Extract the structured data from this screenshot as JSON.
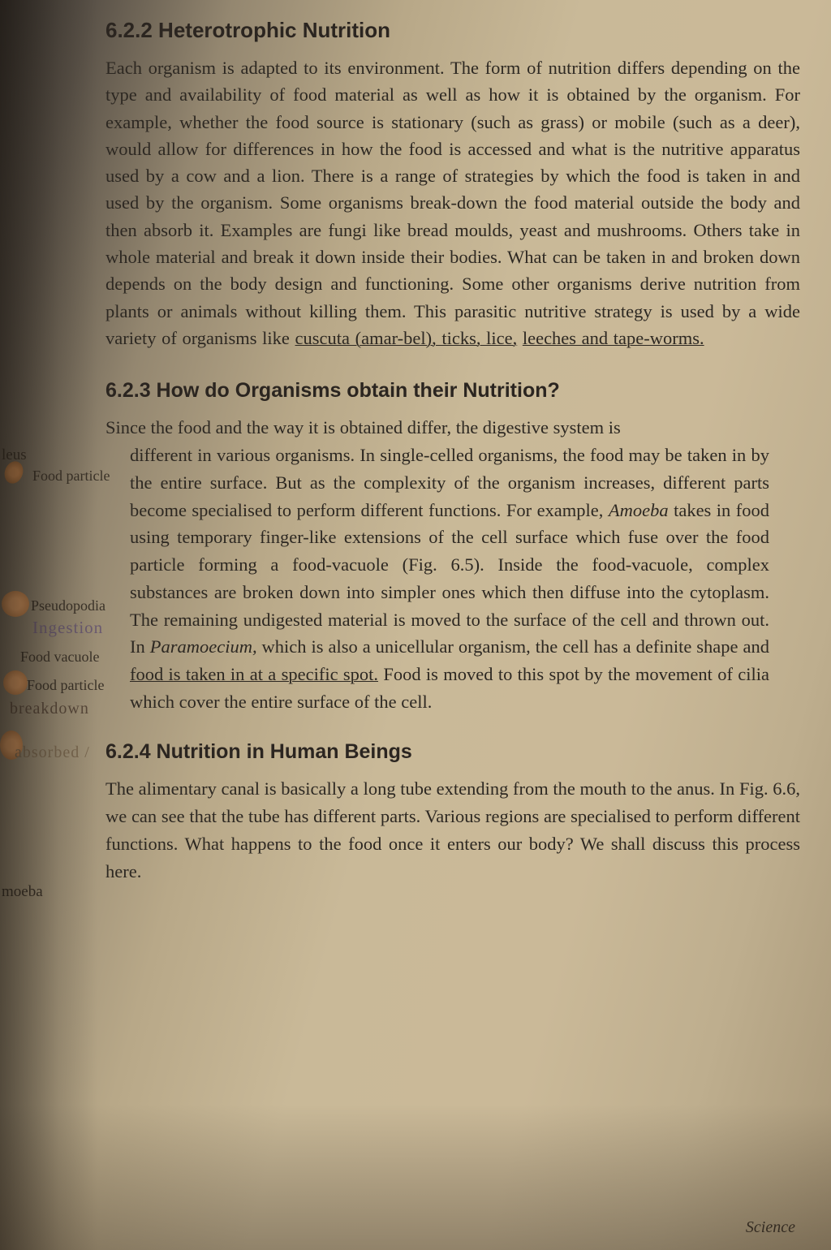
{
  "section622": {
    "heading": "6.2.2 Heterotrophic Nutrition",
    "para": "Each organism is adapted to its environment. The form of nutrition differs depending on the type and availability of food material as well as how it is obtained by the organism. For example, whether the food source is stationary (such as grass) or mobile (such as a deer), would allow for differences in how the food is accessed and what is the nutritive apparatus used by a cow and a lion. There is a range of strategies by which the food is taken in and used by the organism. Some organisms break-down the food material outside the body and then absorb it. Examples are fungi like bread moulds, yeast and mushrooms. Others take in whole material and break it down inside their bodies. What can be taken in and broken down depends on the body design and functioning. Some other organisms derive nutrition from plants or animals without killing them. This parasitic nutritive strategy is used by a wide variety of organisms like ",
    "ul1": "cuscuta (amar-bel), ticks, lice,",
    "ul2": "leeches and tape-worms."
  },
  "section623": {
    "heading": "6.2.3 How do Organisms obtain their Nutrition?",
    "intro": "Since the food and the way it is obtained differ, the digestive system is",
    "body1": "different in various organisms. In single-celled organisms, the food may be taken in by the entire surface. But as the complexity of the organism increases, different parts become specialised to perform different functions. For example, ",
    "amoeba": "Amoeba",
    "body2": " takes in food using temporary finger-like extensions of the cell surface which fuse over the food particle forming a food-vacuole (Fig. 6.5). Inside the food-vacuole, complex substances are broken down into simpler ones which then diffuse into the cytoplasm. The remaining undigested material is moved to the surface of the cell and thrown out. In ",
    "param": "Paramoecium,",
    "body3": " which is also a unicellular organism, the cell has a definite shape and ",
    "ul_food": "food is taken in at a specific spot.",
    "body4": " Food is moved to this spot by the movement of cilia which cover the entire surface of the cell."
  },
  "section624": {
    "heading": "6.2.4 Nutrition in Human Beings",
    "para": "The alimentary canal is basically a long tube extending from the mouth to the anus. In Fig. 6.6, we can see that the tube has different parts. Various regions are specialised to perform different functions. What happens to the food once it enters our body? We shall discuss this process here."
  },
  "labels": {
    "leus": "leus",
    "food_particle": "Food particle",
    "pseudopodia": "Pseudopodia",
    "ingestion": "Ingestion",
    "food_vacuole": "Food vacuole",
    "food_particle2": "Food particle",
    "breakdown": "breakdown",
    "absorbed": "absorbed /",
    "moeba": "moeba"
  },
  "footer": "Science",
  "colors": {
    "text": "#2d2822",
    "heading": "#2b2520",
    "label": "#3a3228",
    "blob_light": "#d89860",
    "blob_dark": "#a06838"
  },
  "fonts": {
    "body_family": "Georgia, Times New Roman, serif",
    "heading_family": "Verdana, Arial, sans-serif",
    "body_size_pt": 17,
    "heading_size_pt": 19
  }
}
